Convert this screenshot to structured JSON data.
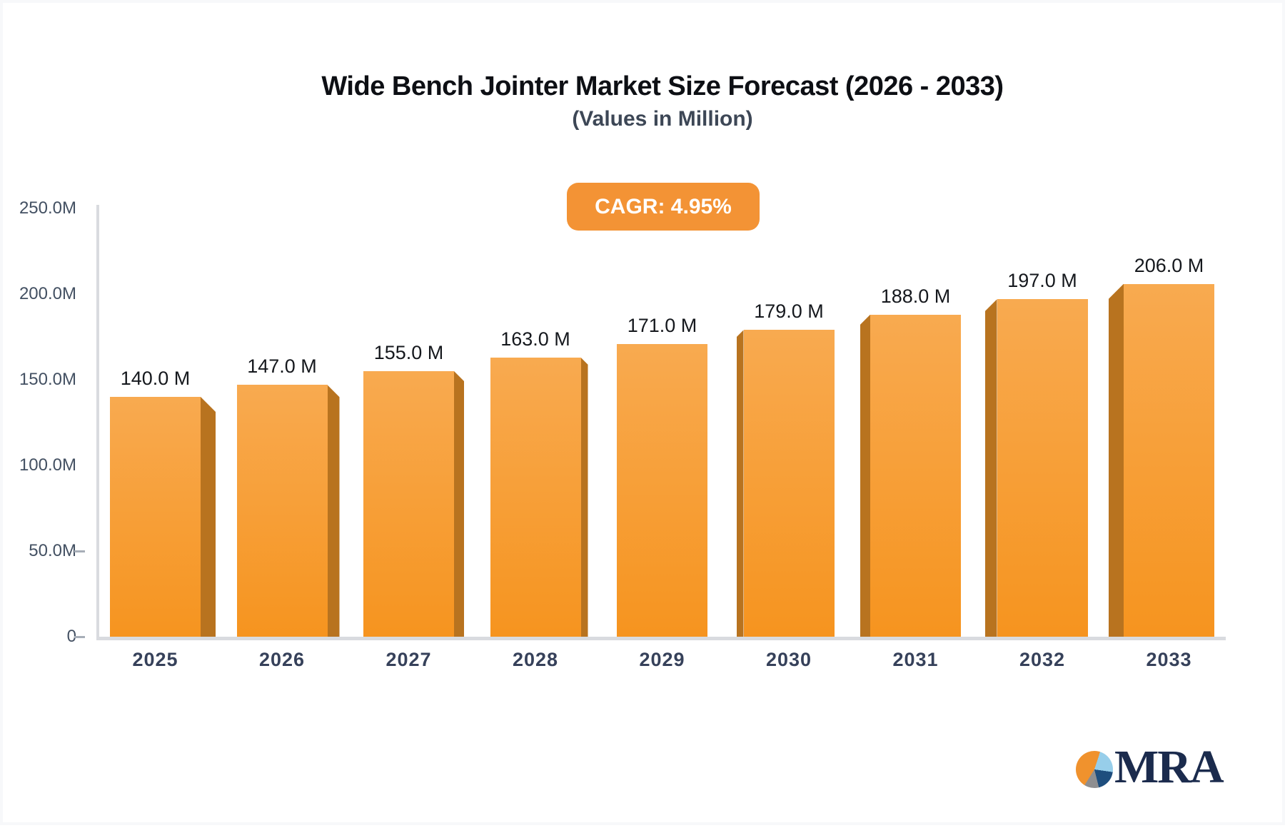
{
  "title": "Wide Bench Jointer Market Size Forecast (2026 - 2033)",
  "subtitle": "(Values in Million)",
  "badge": {
    "label": "CAGR: 4.95%",
    "color": "#f39335"
  },
  "chart_data": {
    "type": "bar",
    "style": "3d-perspective-columns",
    "title": "Wide Bench Jointer Market Size Forecast (2026 - 2033)",
    "subtitle": "(Values in Million)",
    "unit": "Million",
    "categories": [
      "2025",
      "2026",
      "2027",
      "2028",
      "2029",
      "2030",
      "2031",
      "2032",
      "2033"
    ],
    "values": [
      140,
      147,
      155,
      163,
      171,
      179,
      188,
      197,
      206
    ],
    "bar_labels": [
      "140.0 M",
      "147.0 M",
      "155.0 M",
      "163.0 M",
      "171.0 M",
      "179.0 M",
      "188.0 M",
      "197.0 M",
      "206.0 M"
    ],
    "ylim": [
      0,
      250
    ],
    "y_ticks": [
      {
        "label": "250.0M",
        "value": 250,
        "tick_mark": false
      },
      {
        "label": "200.0M",
        "value": 200,
        "tick_mark": false
      },
      {
        "label": "150.0M",
        "value": 150,
        "tick_mark": false
      },
      {
        "label": "100.0M",
        "value": 100,
        "tick_mark": false
      },
      {
        "label": "50.0M",
        "value": 50,
        "tick_mark": true
      },
      {
        "label": "0",
        "value": 0,
        "tick_mark": true
      }
    ],
    "grid": false,
    "legend": null,
    "bar_color_top": "#f8aa50",
    "bar_color_bottom": "#f6941f",
    "bar_side_color": "#b8731f",
    "axis_color": "#d9dbdf"
  },
  "logo": {
    "text": "MRA",
    "text_color": "#1b2b4d",
    "pie_segments": [
      {
        "color": "#f0922d",
        "from": 0,
        "to": 18
      },
      {
        "color": "#97ceea",
        "from": 18,
        "to": 98
      },
      {
        "color": "#1e4e7e",
        "from": 98,
        "to": 166
      },
      {
        "color": "#8e8e90",
        "from": 166,
        "to": 212
      },
      {
        "color": "#f0922d",
        "from": 212,
        "to": 360
      }
    ]
  }
}
